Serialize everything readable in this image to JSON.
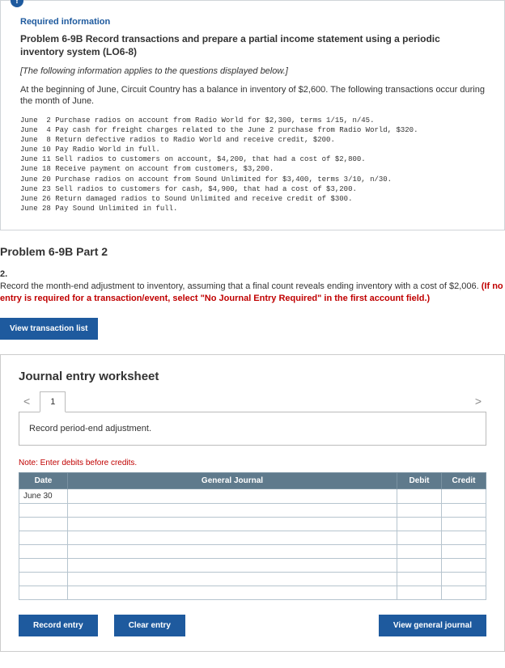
{
  "info": {
    "required_label": "Required information",
    "problem_title": "Problem 6-9B Record transactions and prepare a partial income statement using a periodic inventory system (LO6-8)",
    "applies_note": "[The following information applies to the questions displayed below.]",
    "intro_text": "At the beginning of June, Circuit Country has a balance in inventory of $2,600. The following transactions occur during the month of June.",
    "transactions": "June  2 Purchase radios on account from Radio World for $2,300, terms 1/15, n/45.\nJune  4 Pay cash for freight charges related to the June 2 purchase from Radio World, $320.\nJune  8 Return defective radios to Radio World and receive credit, $200.\nJune 10 Pay Radio World in full.\nJune 11 Sell radios to customers on account, $4,200, that had a cost of $2,800.\nJune 18 Receive payment on account from customers, $3,200.\nJune 20 Purchase radios on account from Sound Unlimited for $3,400, terms 3/10, n/30.\nJune 23 Sell radios to customers for cash, $4,900, that had a cost of $3,200.\nJune 26 Return damaged radios to Sound Unlimited and receive credit of $300.\nJune 28 Pay Sound Unlimited in full."
  },
  "part": {
    "title": "Problem 6-9B Part 2",
    "num": "2.",
    "text_plain": "Record the month-end adjustment to inventory, assuming that a final count reveals ending inventory with a cost of $2,006. ",
    "text_red": "(If no entry is required for a transaction/event, select \"No Journal Entry Required\" in the first account field.)"
  },
  "buttons": {
    "view_list": "View transaction list",
    "record": "Record entry",
    "clear": "Clear entry",
    "view_gj": "View general journal"
  },
  "worksheet": {
    "title": "Journal entry worksheet",
    "tab_label": "1",
    "chev_left": "<",
    "chev_right": ">",
    "instruction": "Record period-end adjustment.",
    "note": "Note: Enter debits before credits.",
    "headers": {
      "date": "Date",
      "gj": "General Journal",
      "debit": "Debit",
      "credit": "Credit"
    },
    "first_date": "June 30",
    "row_count": 8
  }
}
